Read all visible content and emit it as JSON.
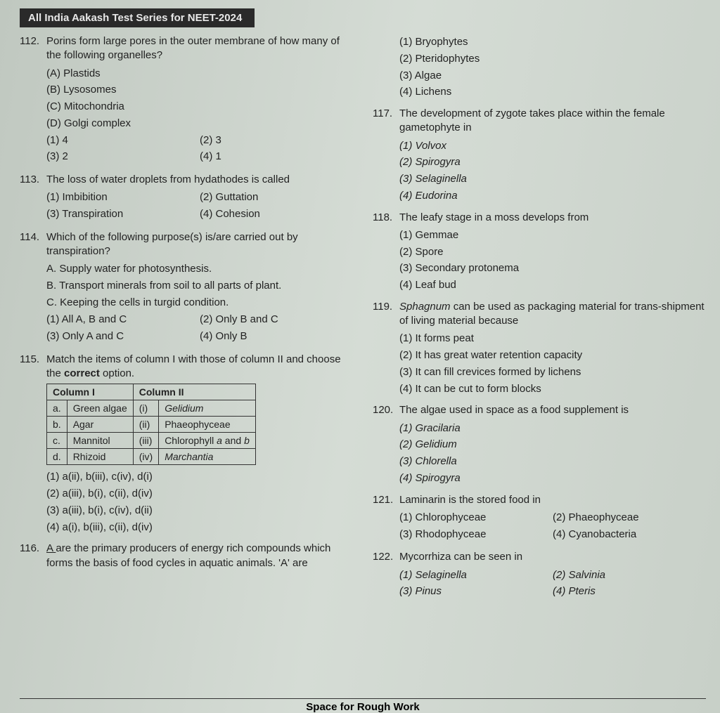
{
  "header": "All India Aakash Test Series for NEET-2024",
  "footer": "Space for Rough Work",
  "left": {
    "q112": {
      "num": "112.",
      "text": "Porins form large pores in the outer membrane of how many of the following organelles?",
      "subA": "(A) Plastids",
      "subB": "(B) Lysosomes",
      "subC": "(C) Mitochondria",
      "subD": "(D) Golgi complex",
      "o1": "(1) 4",
      "o2": "(2) 3",
      "o3": "(3) 2",
      "o4": "(4) 1"
    },
    "q113": {
      "num": "113.",
      "text": "The loss of water droplets from hydathodes is called",
      "o1": "(1) Imbibition",
      "o2": "(2) Guttation",
      "o3": "(3) Transpiration",
      "o4": "(4) Cohesion"
    },
    "q114": {
      "num": "114.",
      "text": "Which of the following purpose(s) is/are carried out by transpiration?",
      "sA": "A. Supply water for photosynthesis.",
      "sB": "B. Transport minerals from soil to all parts of plant.",
      "sC": "C. Keeping the cells in turgid condition.",
      "o1": "(1) All A, B and C",
      "o2": "(2) Only B and C",
      "o3": "(3) Only A and C",
      "o4": "(4) Only B"
    },
    "q115": {
      "num": "115.",
      "text_a": "Match the items of column I with those of column II and choose the ",
      "text_b": "correct",
      "text_c": " option.",
      "th1": "Column I",
      "th2": "Column II",
      "ra1": "a.",
      "ra2": "Green algae",
      "ra3": "(i)",
      "ra4": "Gelidium",
      "rb1": "b.",
      "rb2": "Agar",
      "rb3": "(ii)",
      "rb4": "Phaeophyceae",
      "rc1": "c.",
      "rc2": "Mannitol",
      "rc3": "(iii)",
      "rc4": "Chlorophyll a and b",
      "rd1": "d.",
      "rd2": "Rhizoid",
      "rd3": "(iv)",
      "rd4": "Marchantia",
      "o1": "(1) a(ii), b(iii), c(iv), d(i)",
      "o2": "(2) a(iii), b(i), c(ii), d(iv)",
      "o3": "(3) a(iii), b(i), c(iv), d(ii)",
      "o4": "(4) a(i), b(iii), c(ii), d(iv)"
    },
    "q116": {
      "num": "116.",
      "blank": "  A  ",
      "text": " are the primary producers of energy rich compounds which forms the basis of food cycles in aquatic animals. 'A' are"
    }
  },
  "right": {
    "q116opts": {
      "o1": "(1) Bryophytes",
      "o2": "(2) Pteridophytes",
      "o3": "(3) Algae",
      "o4": "(4) Lichens"
    },
    "q117": {
      "num": "117.",
      "text": "The development of zygote takes place within the female gametophyte in",
      "o1": "(1) Volvox",
      "o2": "(2) Spirogyra",
      "o3": "(3) Selaginella",
      "o4": "(4) Eudorina"
    },
    "q118": {
      "num": "118.",
      "text": "The leafy stage in a moss develops from",
      "o1": "(1) Gemmae",
      "o2": "(2) Spore",
      "o3": "(3) Secondary protonema",
      "o4": "(4) Leaf bud"
    },
    "q119": {
      "num": "119.",
      "text_a": "Sphagnum",
      "text_b": " can be used as packaging material for trans-shipment of living material because",
      "o1": "(1) It forms peat",
      "o2": "(2) It has great water retention capacity",
      "o3": "(3) It can fill crevices formed by lichens",
      "o4": "(4) It can be cut to form blocks"
    },
    "q120": {
      "num": "120.",
      "text": "The algae used in space as a food supplement is",
      "o1": "(1) Gracilaria",
      "o2": "(2) Gelidium",
      "o3": "(3) Chlorella",
      "o4": "(4) Spirogyra"
    },
    "q121": {
      "num": "121.",
      "text": "Laminarin is the stored food in",
      "o1": "(1) Chlorophyceae",
      "o2": "(2) Phaeophyceae",
      "o3": "(3) Rhodophyceae",
      "o4": "(4) Cyanobacteria"
    },
    "q122": {
      "num": "122.",
      "text": "Mycorrhiza can be seen in",
      "o1": "(1) Selaginella",
      "o2": "(2) Salvinia",
      "o3": "(3) Pinus",
      "o4": "(4) Pteris"
    }
  }
}
